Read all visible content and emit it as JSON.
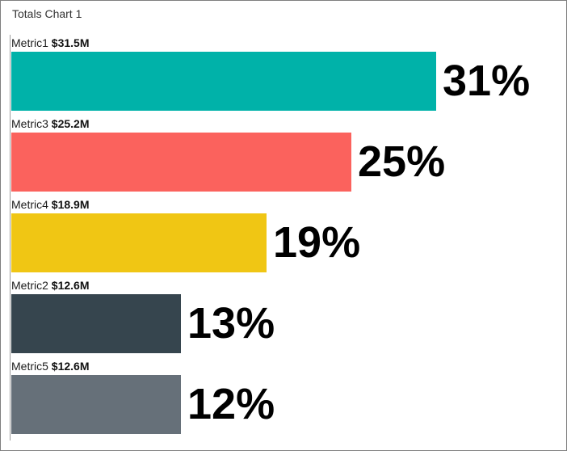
{
  "visual": {
    "title": "Totals Chart 1"
  },
  "colors": {
    "background": "#ffffff",
    "outer_border": "#7f7f7f",
    "axis_line": "#9a9a9a",
    "title_text": "#333333",
    "category_text": "#1c1c1c",
    "percent_text": "#000000"
  },
  "chart_data": {
    "type": "bar",
    "orientation": "horizontal",
    "title": "Totals Chart 1",
    "legend": "none",
    "grid": "off",
    "x_axis": "hidden",
    "x_max_millions": 31.5,
    "categories": [
      "Metric1",
      "Metric3",
      "Metric4",
      "Metric2",
      "Metric5"
    ],
    "values_millions": [
      31.5,
      25.2,
      18.9,
      12.6,
      12.6
    ],
    "rows": [
      {
        "category": "Metric1",
        "value_label": "$31.5M",
        "value_millions": 31.5,
        "percent_label": "31%",
        "color": "#00b2a9"
      },
      {
        "category": "Metric3",
        "value_label": "$25.2M",
        "value_millions": 25.2,
        "percent_label": "25%",
        "color": "#fb625d"
      },
      {
        "category": "Metric4",
        "value_label": "$18.9M",
        "value_millions": 18.9,
        "percent_label": "19%",
        "color": "#f0c614"
      },
      {
        "category": "Metric2",
        "value_label": "$12.6M",
        "value_millions": 12.6,
        "percent_label": "13%",
        "color": "#36454e"
      },
      {
        "category": "Metric5",
        "value_label": "$12.6M",
        "value_millions": 12.6,
        "percent_label": "12%",
        "color": "#667079"
      }
    ]
  }
}
